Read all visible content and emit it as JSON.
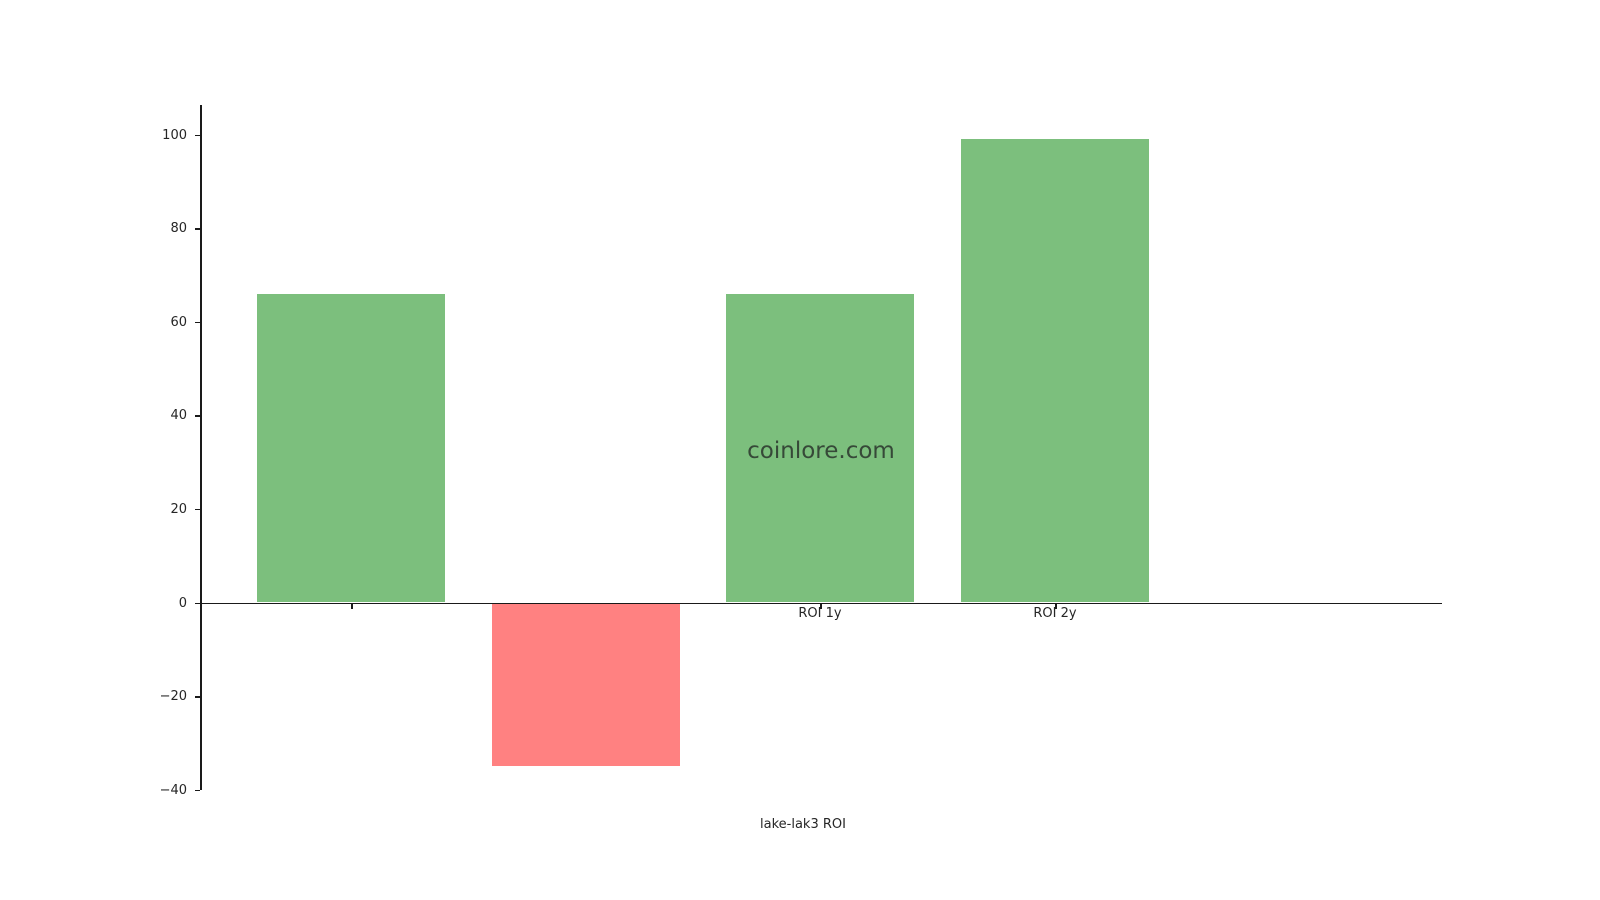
{
  "watermark": "coinlore.com",
  "chart_data": {
    "type": "bar",
    "title": "",
    "xlabel": "lake-lak3 ROI",
    "ylabel": "",
    "categories": [
      "",
      "",
      "ROI 1y",
      "ROI 2y"
    ],
    "values": [
      66,
      -35,
      66,
      99
    ],
    "bar_colors": [
      "#7cbf7d",
      "#ff8181",
      "#7cbf7d",
      "#7cbf7d"
    ],
    "positive_color": "#7cbf7d",
    "negative_color": "#ff8181",
    "axis_color": "#1a1a1a",
    "ylim": [
      -42,
      107
    ],
    "yticks": [
      100,
      80,
      60,
      40,
      20,
      0,
      -20,
      -40
    ],
    "ytick_labels": [
      "100",
      "80",
      "60",
      "40",
      "20",
      "0",
      "−20",
      "−40"
    ],
    "grid": false,
    "legend": "none",
    "background": "#ffffff",
    "watermark": "coinlore.com"
  }
}
